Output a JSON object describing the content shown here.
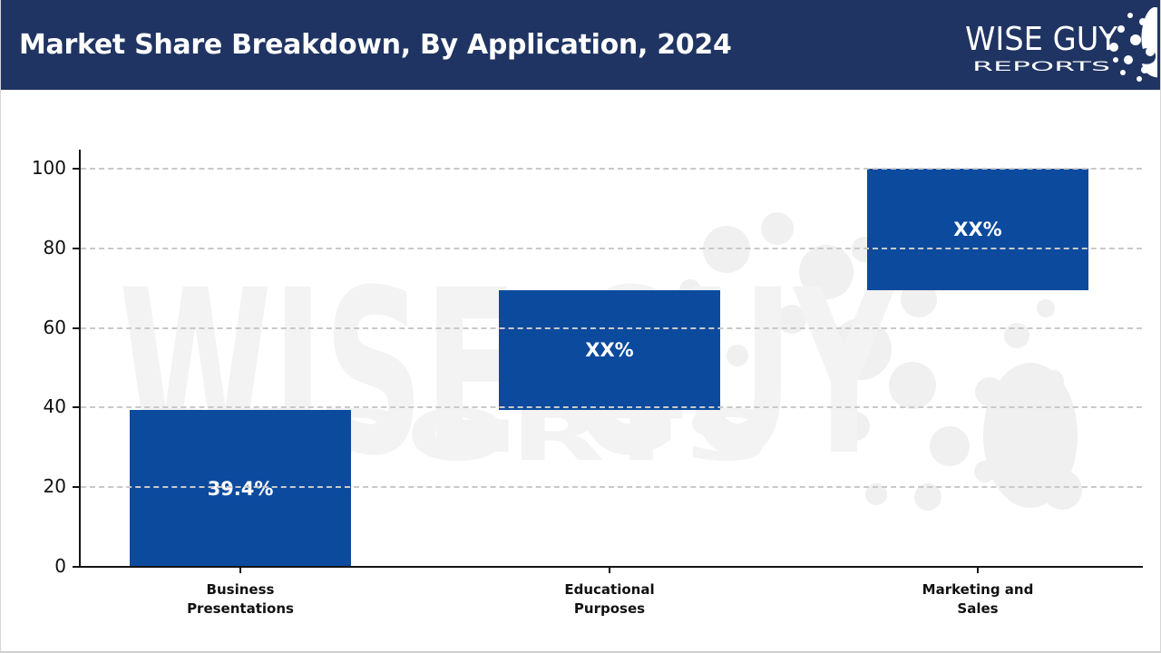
{
  "header": {
    "title": "Market Share Breakdown, By Application, 2024",
    "logo": {
      "line1": "WISE GUY",
      "line2": "REPORTS"
    }
  },
  "watermark": {
    "line1": "WISE GUY",
    "line2": "REPORTS"
  },
  "chart_data": {
    "type": "bar",
    "variant": "floating-waterfall",
    "title": "Market Share Breakdown, By Application, 2024",
    "categories": [
      "Business\nPresentations",
      "Educational\nPurposes",
      "Marketing and\nSales"
    ],
    "segments": [
      {
        "category": "Business Presentations",
        "start": 0,
        "end": 39.4,
        "label": "39.4%"
      },
      {
        "category": "Educational Purposes",
        "start": 39.4,
        "end": 69.5,
        "label": "XX%"
      },
      {
        "category": "Marketing and Sales",
        "start": 69.5,
        "end": 100,
        "label": "XX%"
      }
    ],
    "yticks": [
      0,
      20,
      40,
      60,
      80,
      100
    ],
    "ylim": [
      0,
      100
    ],
    "xlabel": "",
    "ylabel": "",
    "grid": true,
    "grid_style": "dashed",
    "legend": "none",
    "bar_color": "#0c4a9e",
    "label_color": "#ffffff"
  },
  "colors": {
    "header_bg": "#1f3462",
    "bar": "#0c4a9e",
    "grid": "#c9c9c9",
    "axis": "#141414",
    "text": "#111111",
    "watermark": "#f3f3f3",
    "white": "#ffffff"
  }
}
